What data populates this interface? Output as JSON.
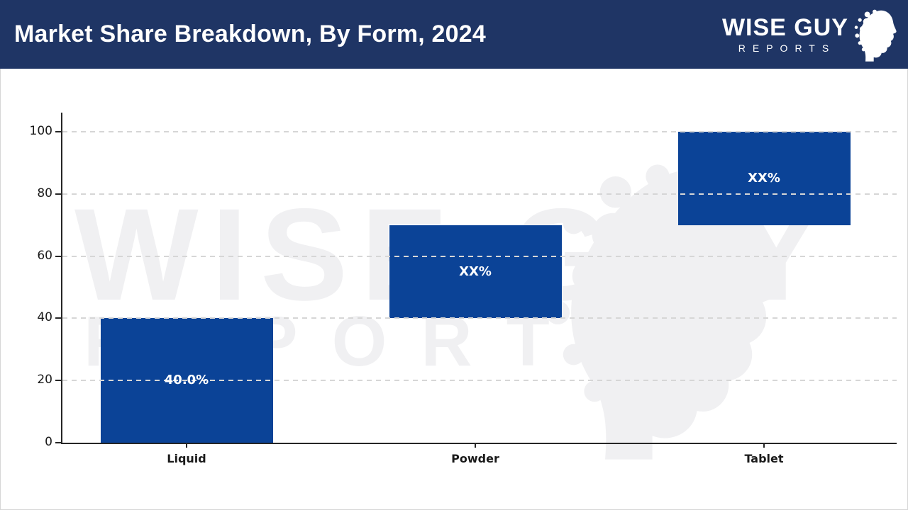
{
  "header": {
    "title": "Market Share Breakdown, By Form, 2024",
    "logo": {
      "name": "WISE GUY",
      "sub": "REPORTS"
    }
  },
  "watermark": {
    "name": "WISE GUY",
    "sub": "REPORTS"
  },
  "chart_data": {
    "type": "bar",
    "variant": "floating-range-bars",
    "title": "Market Share Breakdown, By Form, 2024",
    "categories": [
      "Liquid",
      "Powder",
      "Tablet"
    ],
    "series": [
      {
        "name": "Liquid",
        "start": 0,
        "end": 40,
        "label": "40.0%"
      },
      {
        "name": "Powder",
        "start": 40,
        "end": 70,
        "label": "XX%"
      },
      {
        "name": "Tablet",
        "start": 70,
        "end": 100,
        "label": "XX%"
      }
    ],
    "yticks": [
      0,
      20,
      40,
      60,
      80,
      100
    ],
    "ylim": [
      0,
      106
    ],
    "xlabel": "",
    "ylabel": "",
    "grid": "horizontal-dashed",
    "legend": "none",
    "bar_color": "#0b4397",
    "bar_label_color": "#ffffff",
    "axis_color": "#262626",
    "grid_color": "#d6d6d6",
    "tick_label_color": "#1a1a1a",
    "header_bg_color": "#1f3565",
    "watermark_color": "#f0f0f2"
  }
}
